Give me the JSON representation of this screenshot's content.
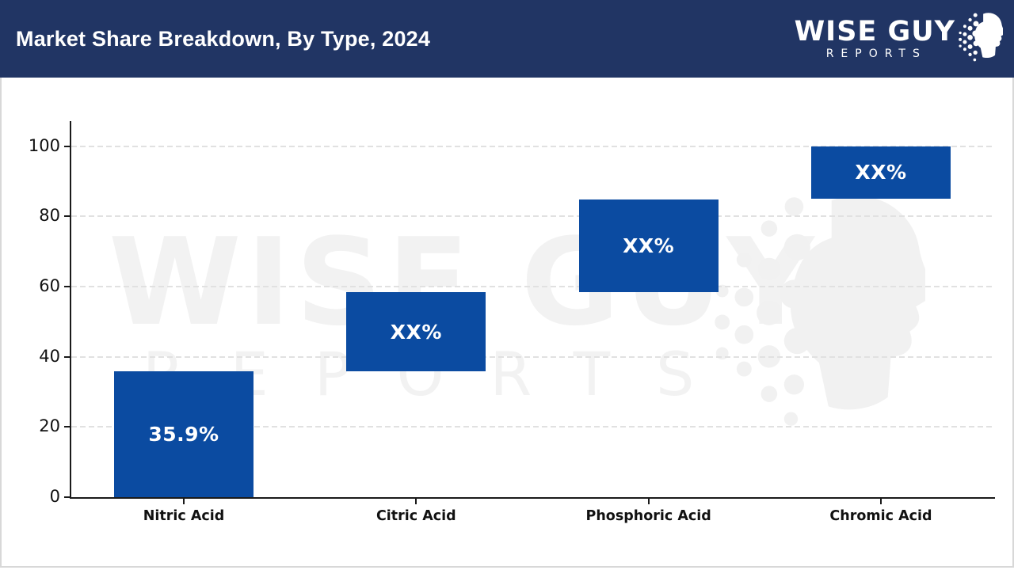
{
  "header": {
    "title": "Market Share Breakdown, By Type, 2024",
    "logo": {
      "primary": "WISE GUY",
      "secondary": "REPORTS"
    }
  },
  "watermark": {
    "primary": "WISE GUY",
    "secondary": "REPORTS"
  },
  "chart_data": {
    "type": "bar",
    "subtype": "waterfall",
    "title": "Market Share Breakdown, By Type, 2024",
    "categories": [
      "Nitric Acid",
      "Citric Acid",
      "Phosphoric Acid",
      "Chromic Acid"
    ],
    "segments": [
      {
        "category": "Nitric Acid",
        "start": 0,
        "end": 35.9,
        "label": "35.9%"
      },
      {
        "category": "Citric Acid",
        "start": 35.9,
        "end": 58.4,
        "label": "XX%"
      },
      {
        "category": "Phosphoric Acid",
        "start": 58.4,
        "end": 84.9,
        "label": "XX%"
      },
      {
        "category": "Chromic Acid",
        "start": 85.0,
        "end": 100,
        "label": "XX%"
      }
    ],
    "xlabel": "",
    "ylabel": "",
    "ylim": [
      0,
      107
    ],
    "yticks": [
      0,
      20,
      40,
      60,
      80,
      100
    ],
    "grid": "horizontal-dashed",
    "legend": "none",
    "bar_color": "#0b4ba1",
    "bar_label_color": "#ffffff"
  },
  "colors": {
    "header_bg": "#213564",
    "header_text": "#ffffff",
    "bar": "#0b4ba1",
    "axis": "#1a1a1a",
    "grid": "#e1e1e1",
    "watermark": "#f2f2f2",
    "frame_border": "#d8d8d8"
  }
}
